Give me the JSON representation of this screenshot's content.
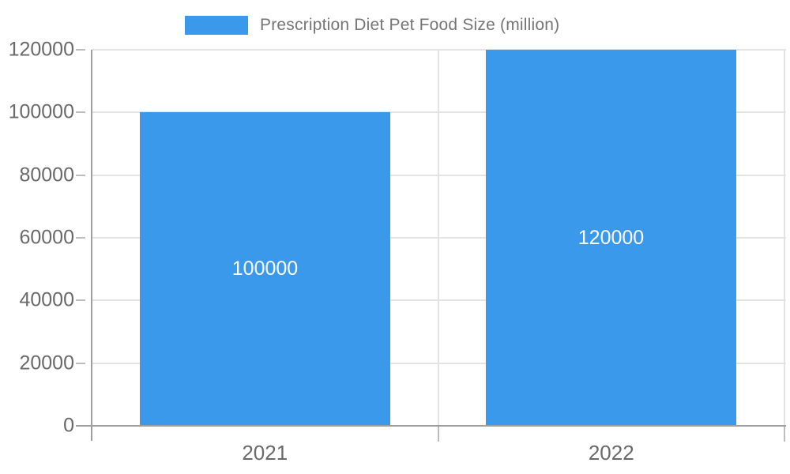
{
  "legend": {
    "label": "Prescription Diet Pet Food Size (million)"
  },
  "chart_data": {
    "type": "bar",
    "title": "Prescription Diet Pet Food Size (million)",
    "categories": [
      "2021",
      "2022"
    ],
    "values": [
      100000,
      120000
    ],
    "value_labels": [
      "100000",
      "120000"
    ],
    "xlabel": "",
    "ylabel": "",
    "ylim": [
      0,
      120000
    ],
    "yticks": [
      0,
      20000,
      40000,
      60000,
      80000,
      100000,
      120000
    ],
    "grid": true,
    "legend_position": "top-center",
    "colors": {
      "bar": "#3b99ec",
      "grid": "#e3e3e3",
      "axis": "#9e9e9e",
      "tick": "#bdbdbd",
      "axis_label": "#696969",
      "legend_text": "#757575",
      "data_label": "#ffffff"
    }
  }
}
